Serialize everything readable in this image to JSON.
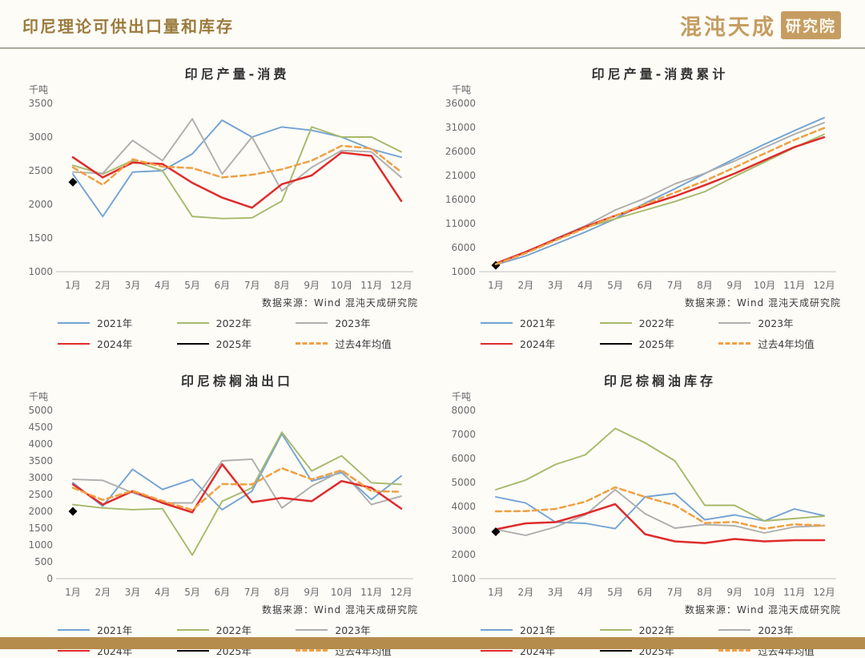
{
  "page": {
    "title": "印尼理论可供出口量和库存",
    "logo_text": "混沌天成",
    "logo_seal": "研究院"
  },
  "source_label": "数据来源：Wind  混沌天成研究院",
  "unit_label": "千吨",
  "legend": [
    {
      "label": "2021年",
      "color": "#73A3D3",
      "dash": false
    },
    {
      "label": "2022年",
      "color": "#A6B96A",
      "dash": false
    },
    {
      "label": "2023年",
      "color": "#AEAEAE",
      "dash": false
    },
    {
      "label": "2024年",
      "color": "#DF2B2B",
      "dash": false
    },
    {
      "label": "2025年",
      "color": "#000000",
      "dash": false
    },
    {
      "label": "过去4年均值",
      "color": "#EFA044",
      "dash": true
    }
  ],
  "chart_data": [
    {
      "type": "line",
      "title": "印尼产量-消费",
      "ylabel": "千吨",
      "ylim": [
        1000,
        3500
      ],
      "ytick_step": 500,
      "legend_position": "bottom",
      "grid": false,
      "categories": [
        "1月",
        "2月",
        "3月",
        "4月",
        "5月",
        "6月",
        "7月",
        "8月",
        "9月",
        "10月",
        "11月",
        "12月"
      ],
      "series": [
        {
          "name": "2021年",
          "color": "#73A3D3",
          "style": "solid",
          "values": [
            2450,
            1820,
            2480,
            2500,
            2750,
            3250,
            3000,
            3150,
            3100,
            3000,
            2820,
            2700
          ]
        },
        {
          "name": "2022年",
          "color": "#A6B96A",
          "style": "solid",
          "values": [
            2580,
            2450,
            2650,
            2500,
            1820,
            1790,
            1800,
            2050,
            3150,
            3000,
            3000,
            2780
          ]
        },
        {
          "name": "2023年",
          "color": "#AEAEAE",
          "style": "solid",
          "values": [
            2480,
            2460,
            2950,
            2650,
            3270,
            2450,
            3000,
            2200,
            2550,
            2800,
            2780,
            2400
          ]
        },
        {
          "name": "2024年",
          "color": "#DF2B2B",
          "style": "solid",
          "width": 2.5,
          "values": [
            2700,
            2400,
            2620,
            2600,
            2320,
            2100,
            1950,
            2300,
            2430,
            2770,
            2720,
            2050
          ]
        },
        {
          "name": "2025年",
          "color": "#000000",
          "style": "diamond",
          "values": [
            2330,
            null,
            null,
            null,
            null,
            null,
            null,
            null,
            null,
            null,
            null,
            null
          ]
        },
        {
          "name": "过去4年均值",
          "color": "#EFA044",
          "style": "dashed",
          "width": 2.5,
          "values": [
            2550,
            2290,
            2670,
            2560,
            2540,
            2400,
            2440,
            2520,
            2650,
            2870,
            2830,
            2480
          ]
        }
      ]
    },
    {
      "type": "line",
      "title": "印尼产量-消费累计",
      "ylabel": "千吨",
      "ylim": [
        1000,
        36000
      ],
      "ytick_step": 5000,
      "legend_position": "bottom",
      "grid": false,
      "categories": [
        "1月",
        "2月",
        "3月",
        "4月",
        "5月",
        "6月",
        "7月",
        "8月",
        "9月",
        "10月",
        "11月",
        "12月"
      ],
      "series": [
        {
          "name": "2021年",
          "color": "#73A3D3",
          "style": "solid",
          "values": [
            2450,
            4270,
            6750,
            9250,
            12000,
            15250,
            18250,
            21400,
            24500,
            27500,
            30320,
            33020
          ]
        },
        {
          "name": "2022年",
          "color": "#A6B96A",
          "style": "solid",
          "values": [
            2580,
            5030,
            7680,
            10180,
            12000,
            13790,
            15590,
            17640,
            20790,
            23790,
            26790,
            29570
          ]
        },
        {
          "name": "2023年",
          "color": "#AEAEAE",
          "style": "solid",
          "values": [
            2480,
            4940,
            7890,
            10540,
            13810,
            16260,
            19260,
            21460,
            24010,
            26810,
            29590,
            31990
          ]
        },
        {
          "name": "2024年",
          "color": "#DF2B2B",
          "style": "solid",
          "width": 2.5,
          "values": [
            2700,
            5100,
            7720,
            10320,
            12640,
            14740,
            16690,
            18990,
            21420,
            24190,
            26910,
            28960
          ]
        },
        {
          "name": "2025年",
          "color": "#000000",
          "style": "diamond",
          "values": [
            2330,
            null,
            null,
            null,
            null,
            null,
            null,
            null,
            null,
            null,
            null,
            null
          ]
        },
        {
          "name": "过去4年均值",
          "color": "#EFA044",
          "style": "dashed",
          "width": 2.5,
          "values": [
            2550,
            4840,
            7510,
            10070,
            12610,
            15010,
            17450,
            19870,
            22680,
            25570,
            28400,
            30890
          ]
        }
      ]
    },
    {
      "type": "line",
      "title": "印尼棕榈油出口",
      "ylabel": "千吨",
      "ylim": [
        0,
        5000
      ],
      "ytick_step": 500,
      "legend_position": "bottom",
      "grid": false,
      "categories": [
        "1月",
        "2月",
        "3月",
        "4月",
        "5月",
        "6月",
        "7月",
        "8月",
        "9月",
        "10月",
        "11月",
        "12月"
      ],
      "series": [
        {
          "name": "2021年",
          "color": "#73A3D3",
          "style": "solid",
          "values": [
            2850,
            2150,
            3250,
            2650,
            2950,
            2050,
            2600,
            4300,
            2900,
            3150,
            2350,
            3050
          ]
        },
        {
          "name": "2022年",
          "color": "#A6B96A",
          "style": "solid",
          "values": [
            2200,
            2100,
            2050,
            2080,
            700,
            2300,
            2700,
            4350,
            3200,
            3650,
            2850,
            2800
          ]
        },
        {
          "name": "2023年",
          "color": "#AEAEAE",
          "style": "solid",
          "values": [
            2950,
            2920,
            2550,
            2250,
            2250,
            3500,
            3550,
            2100,
            2750,
            3200,
            2200,
            2450
          ]
        },
        {
          "name": "2024年",
          "color": "#DF2B2B",
          "style": "solid",
          "width": 2.5,
          "values": [
            2800,
            2200,
            2600,
            2250,
            1970,
            3400,
            2270,
            2400,
            2300,
            2900,
            2700,
            2080
          ]
        },
        {
          "name": "2025年",
          "color": "#000000",
          "style": "diamond",
          "values": [
            2000,
            null,
            null,
            null,
            null,
            null,
            null,
            null,
            null,
            null,
            null,
            null
          ]
        },
        {
          "name": "过去4年均值",
          "color": "#EFA044",
          "style": "dashed",
          "width": 2.5,
          "values": [
            2700,
            2340,
            2610,
            2310,
            2040,
            2810,
            2800,
            3280,
            2950,
            3220,
            2600,
            2580
          ]
        }
      ]
    },
    {
      "type": "line",
      "title": "印尼棕榈油库存",
      "ylabel": "千吨",
      "ylim": [
        1000,
        8000
      ],
      "ytick_step": 1000,
      "legend_position": "bottom",
      "grid": false,
      "categories": [
        "1月",
        "2月",
        "3月",
        "4月",
        "5月",
        "6月",
        "7月",
        "8月",
        "9月",
        "10月",
        "11月",
        "12月"
      ],
      "series": [
        {
          "name": "2021年",
          "color": "#73A3D3",
          "style": "solid",
          "values": [
            4400,
            4150,
            3350,
            3300,
            3080,
            4400,
            4550,
            3450,
            3650,
            3400,
            3900,
            3620
          ]
        },
        {
          "name": "2022年",
          "color": "#A6B96A",
          "style": "solid",
          "values": [
            4700,
            5100,
            5750,
            6150,
            7250,
            6650,
            5900,
            4050,
            4050,
            3400,
            3500,
            3600
          ]
        },
        {
          "name": "2023年",
          "color": "#AEAEAE",
          "style": "solid",
          "values": [
            3050,
            2800,
            3150,
            3650,
            4700,
            3700,
            3100,
            3250,
            3200,
            2900,
            3150,
            3200
          ]
        },
        {
          "name": "2024年",
          "color": "#DF2B2B",
          "style": "solid",
          "width": 2.5,
          "values": [
            3050,
            3300,
            3350,
            3700,
            4100,
            2850,
            2550,
            2480,
            2650,
            2550,
            2600,
            2600
          ]
        },
        {
          "name": "2025年",
          "color": "#000000",
          "style": "diamond",
          "values": [
            2950,
            null,
            null,
            null,
            null,
            null,
            null,
            null,
            null,
            null,
            null,
            null
          ]
        },
        {
          "name": "过去4年均值",
          "color": "#EFA044",
          "style": "dashed",
          "width": 2.5,
          "values": [
            3800,
            3810,
            3900,
            4200,
            4800,
            4400,
            4050,
            3310,
            3360,
            3080,
            3260,
            3210
          ]
        }
      ]
    }
  ]
}
